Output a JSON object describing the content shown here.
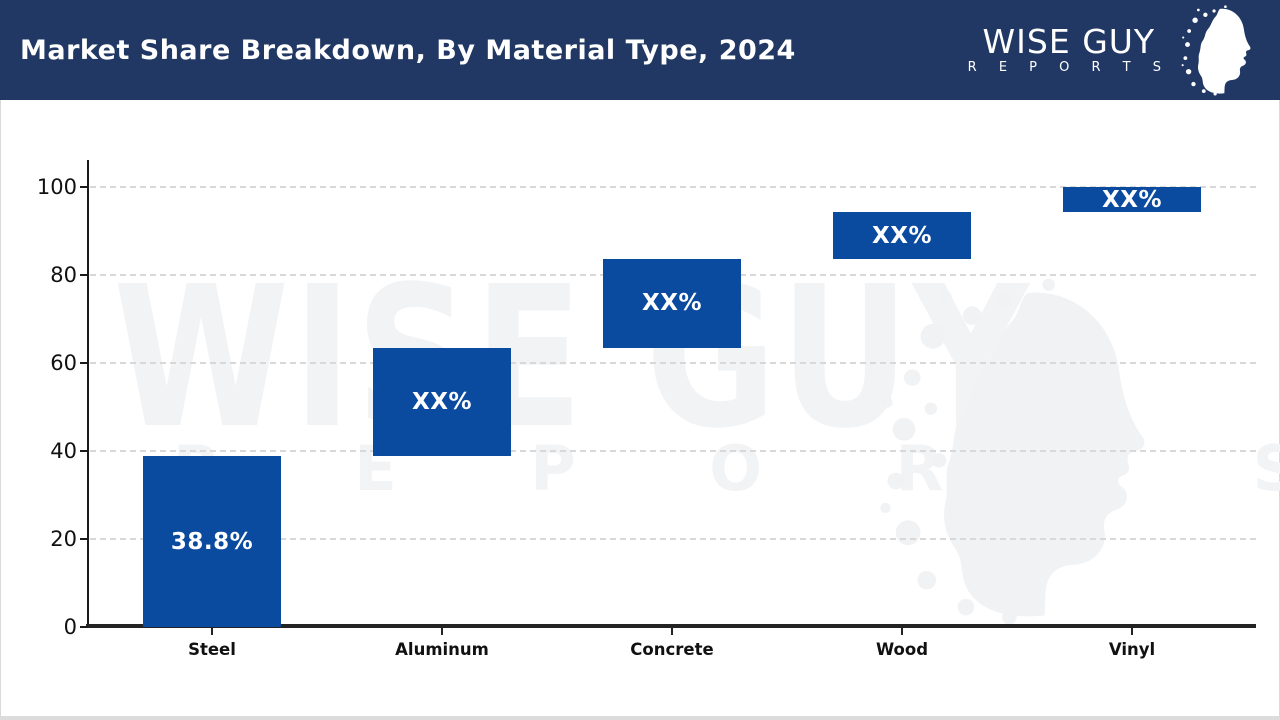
{
  "header": {
    "title": "Market Share Breakdown, By Material Type, 2024",
    "bg_color": "#213864",
    "logo": {
      "line1": "WISE GUY",
      "line2": "R E P O R T S",
      "face_icon": "dotted-head-profile"
    }
  },
  "watermark": {
    "line1": "WISE GUY",
    "line2": "R E P O R T S",
    "face_icon": "dotted-head-profile"
  },
  "chart_data": {
    "type": "bar",
    "subtype": "waterfall",
    "title": "Market Share Breakdown, By Material Type, 2024",
    "categories": [
      "Steel",
      "Aluminum",
      "Concrete",
      "Wood",
      "Vinyl"
    ],
    "segments": [
      {
        "category": "Steel",
        "start": 0,
        "end": 38.8,
        "label": "38.8%"
      },
      {
        "category": "Aluminum",
        "start": 38.8,
        "end": 63.5,
        "label": "XX%"
      },
      {
        "category": "Concrete",
        "start": 63.5,
        "end": 83.6,
        "label": "XX%"
      },
      {
        "category": "Wood",
        "start": 83.6,
        "end": 94.3,
        "label": "XX%"
      },
      {
        "category": "Vinyl",
        "start": 94.3,
        "end": 100,
        "label": "XX%"
      }
    ],
    "y_ticks": [
      0,
      20,
      40,
      60,
      80,
      100
    ],
    "ylim": [
      0,
      106
    ],
    "xlabel": "",
    "ylabel": "",
    "grid": "horizontal dashed",
    "legend": "none",
    "bar_color": "#0a4a9f",
    "bar_label_color": "#ffffff",
    "axis_color": "#1a1a1a",
    "gridline_color": "#d8d8d8"
  }
}
